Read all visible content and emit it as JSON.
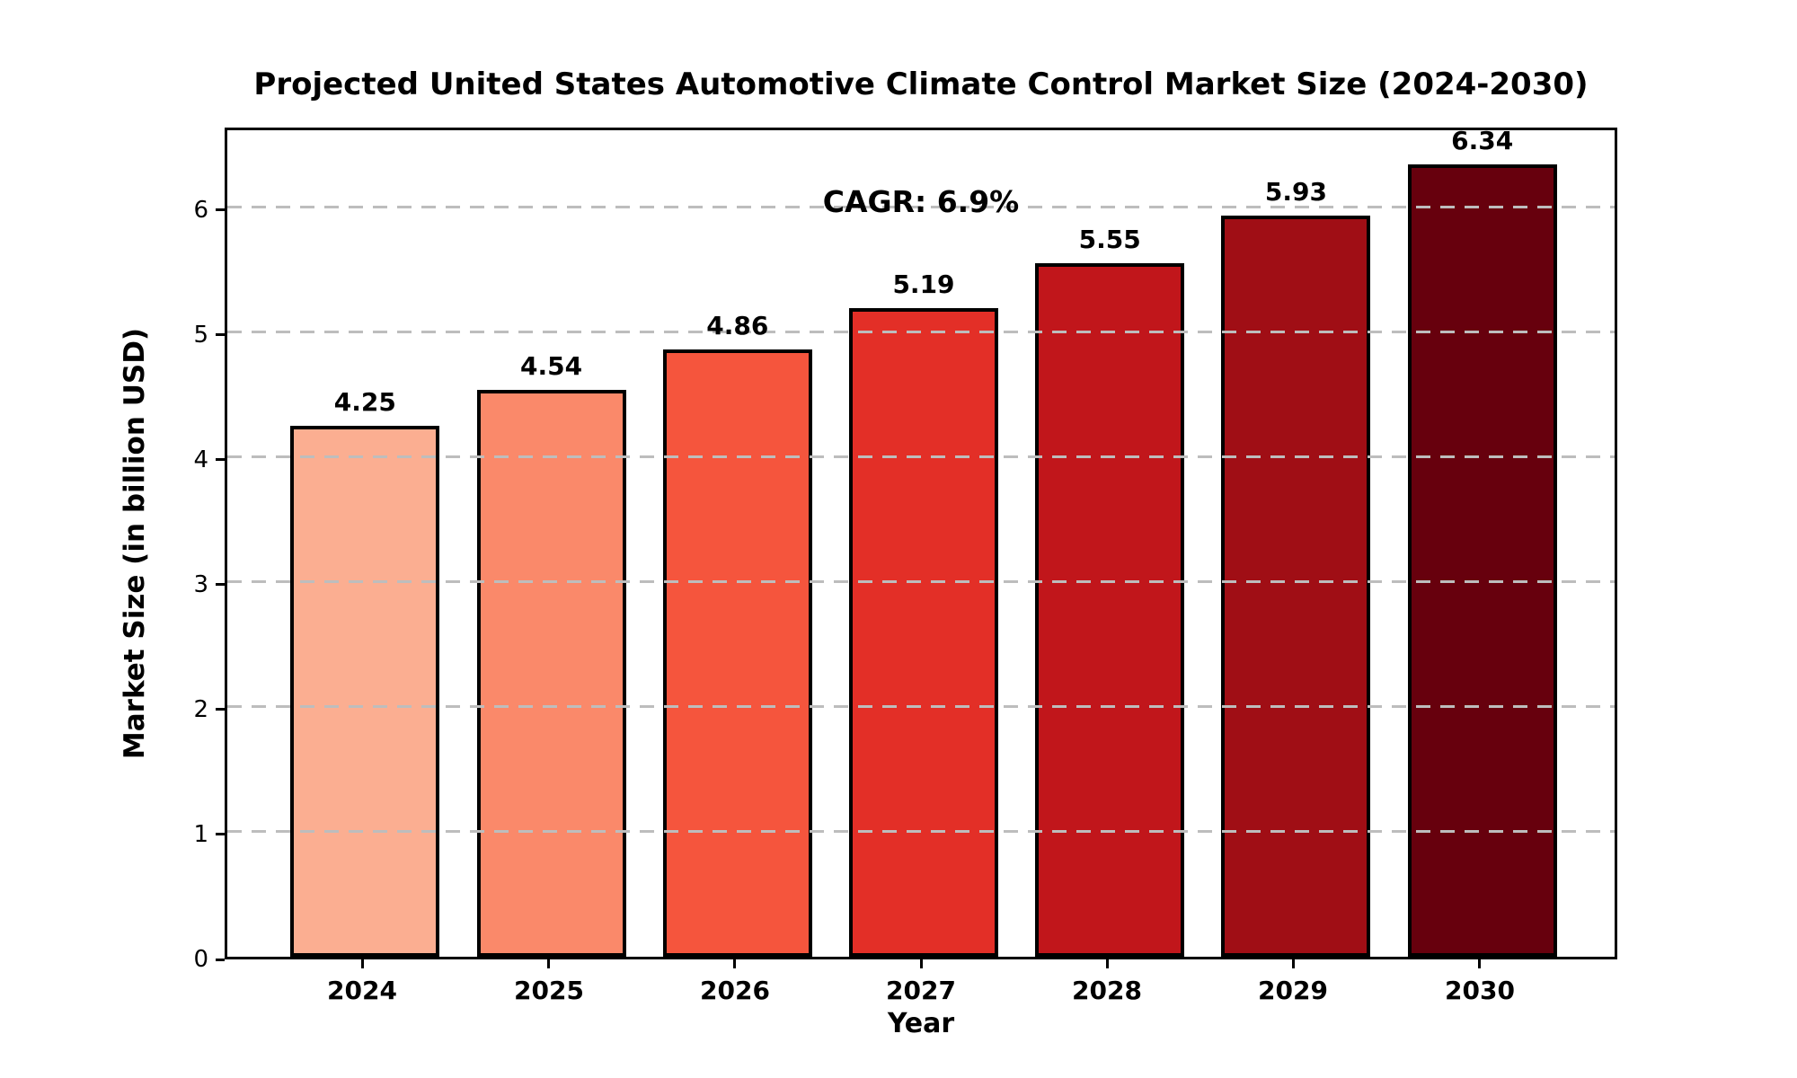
{
  "chart_data": {
    "type": "bar",
    "title": "Projected United States Automotive Climate Control Market Size (2024-2030)",
    "xlabel": "Year",
    "ylabel": "Market Size (in billion USD)",
    "annotation": "CAGR: 6.9%",
    "categories": [
      "2024",
      "2025",
      "2026",
      "2027",
      "2028",
      "2029",
      "2030"
    ],
    "values": [
      4.25,
      4.54,
      4.86,
      5.19,
      5.55,
      5.93,
      6.34
    ],
    "bar_labels": [
      "4.25",
      "4.54",
      "4.86",
      "5.19",
      "5.55",
      "5.93",
      "6.34"
    ],
    "bar_colors": [
      "#FBAE91",
      "#FA896A",
      "#F5553D",
      "#E32F27",
      "#C1161B",
      "#A00E15",
      "#67000D"
    ],
    "bar_edge_color": "#000000",
    "y_ticks": [
      0,
      1,
      2,
      3,
      4,
      5,
      6
    ],
    "ylim": [
      0,
      6.66
    ],
    "xlim": [
      -0.74,
      6.74
    ],
    "bar_width_units": 0.8,
    "grid": "horizontal dashed",
    "grid_color": "#BDBDBD",
    "legend_position": "none"
  }
}
